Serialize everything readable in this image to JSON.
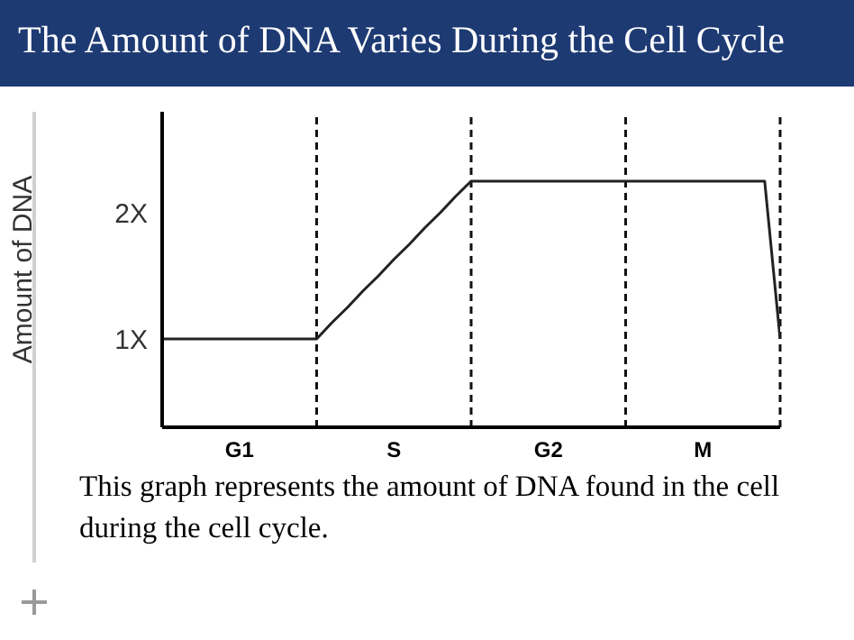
{
  "chart_data": {
    "type": "line",
    "title": "The Amount of DNA Varies During the Cell Cycle",
    "ylabel": "Amount of DNA",
    "categories": [
      null,
      null,
      null,
      null,
      null,
      "G1",
      null,
      null,
      null,
      null,
      null,
      null,
      null,
      null,
      null,
      "S",
      null,
      null,
      null,
      null,
      null,
      null,
      null,
      null,
      null,
      "G2",
      null,
      null,
      null,
      null,
      null,
      null,
      null,
      null,
      null,
      "M",
      null,
      null,
      null,
      null,
      null
    ],
    "series": [
      {
        "color": "#222222",
        "values": [
          1,
          1,
          1,
          1,
          1,
          1,
          1,
          1,
          1,
          1,
          1,
          1.13,
          1.25,
          1.38,
          1.5,
          1.63,
          1.75,
          1.88,
          2,
          2.13,
          2.25,
          2.25,
          2.25,
          2.25,
          2.25,
          2.25,
          2.25,
          2.25,
          2.25,
          2.25,
          2.25,
          2.25,
          2.25,
          2.25,
          2.25,
          2.25,
          2.25,
          2.25,
          2.25,
          2.25,
          1
        ]
      }
    ],
    "ylim": [
      0.3,
      2.8
    ],
    "yticks": [
      {
        "value": 1,
        "label": "1X"
      },
      {
        "value": 2,
        "label": "2X"
      }
    ],
    "annotations": [
      "This graph represents the amount of DNA found in the cell during the cell cycle."
    ],
    "grid": "x",
    "legend": false,
    "marker": "none",
    "line_style": "solid"
  }
}
